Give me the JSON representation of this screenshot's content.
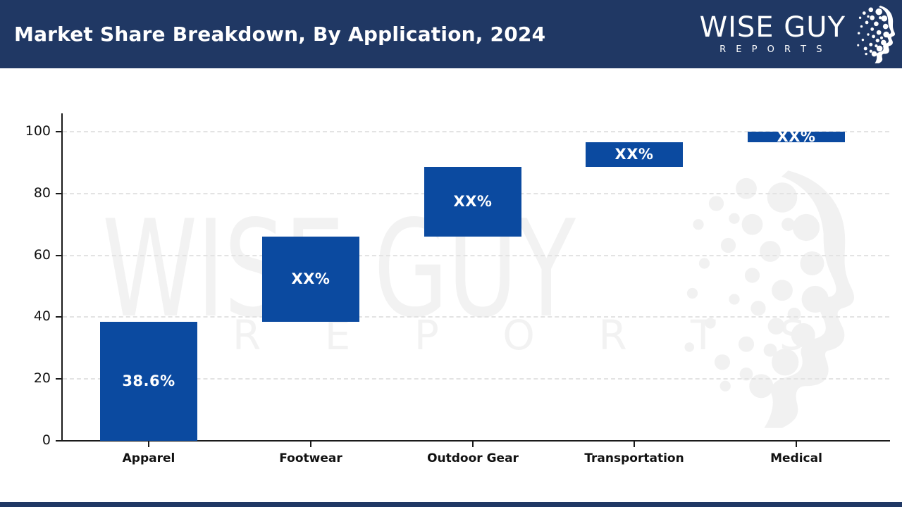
{
  "header": {
    "title": "Market Share Breakdown, By Application, 2024"
  },
  "logo": {
    "wordmark": "WISE GUY",
    "sub": "R E P O R T S"
  },
  "watermark": {
    "wordmark": "WISE GUY",
    "sub": "R E P O R T S"
  },
  "colors": {
    "header_bg": "#203864",
    "footer_bg": "#203864",
    "bar": "#0b4aa0",
    "bar_label": "#ffffff",
    "axis": "#1a1a1a",
    "gridline": "#e3e3e3",
    "watermark": "#f2f2f2"
  },
  "chart_data": {
    "type": "bar",
    "subtype": "waterfall-floating-segments",
    "title": "Market Share Breakdown, By Application, 2024",
    "categories": [
      "Apparel",
      "Footwear",
      "Outdoor Gear",
      "Transportation",
      "Medical"
    ],
    "segments": [
      {
        "category": "Apparel",
        "start": 0,
        "end": 38.6,
        "label": "38.6%"
      },
      {
        "category": "Footwear",
        "start": 38.6,
        "end": 66.1,
        "label": "XX%"
      },
      {
        "category": "Outdoor Gear",
        "start": 66.1,
        "end": 88.7,
        "label": "XX%"
      },
      {
        "category": "Transportation",
        "start": 88.7,
        "end": 96.6,
        "label": "XX%"
      },
      {
        "category": "Medical",
        "start": 96.6,
        "end": 100,
        "label": "XX%"
      }
    ],
    "yticks": [
      0,
      20,
      40,
      60,
      80,
      100
    ],
    "ylim": [
      0,
      105
    ],
    "xlabel": "",
    "ylabel": "",
    "grid": "horizontal-dashed",
    "legend": "none"
  }
}
